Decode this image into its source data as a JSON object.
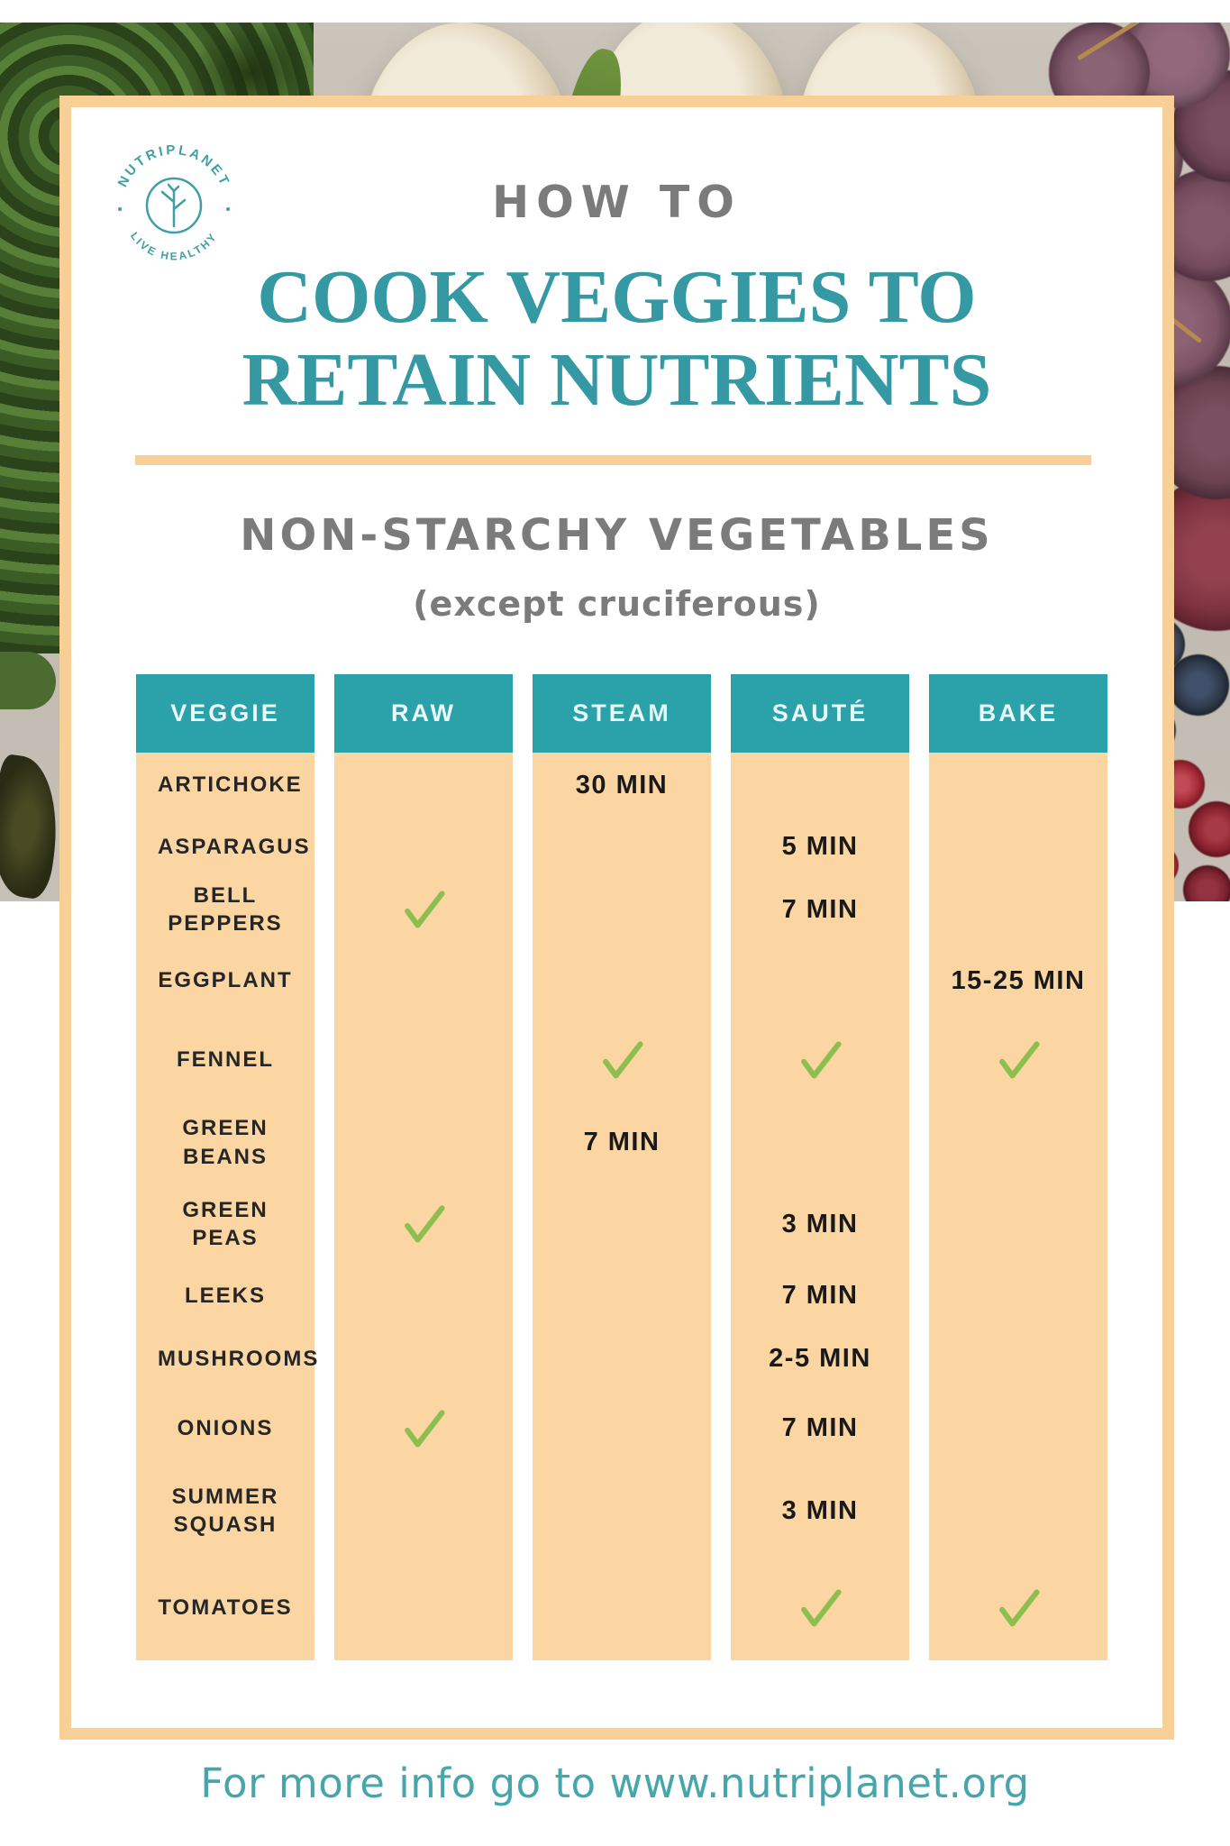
{
  "logo": {
    "brand": "NUTRIPLANET",
    "tagline": "LIVE HEALTHY"
  },
  "header": {
    "kicker": "HOW TO",
    "title_line1": "COOK VEGGIES TO",
    "title_line2": "RETAIN NUTRIENTS",
    "subtitle": "NON-STARCHY VEGETABLES",
    "subtitle_note": "(except cruciferous)"
  },
  "footer": {
    "text": "For more info go to www.nutriplanet.org"
  },
  "colors": {
    "teal_header": "#2ba2aa",
    "title_teal": "#3599a4",
    "peach_frame": "#f8cf97",
    "peach_column": "#fbd6a2",
    "check_green": "#8cbf4f",
    "gray_heading": "#7b7b7b",
    "footer_teal": "#47a6ac",
    "cell_text": "#191919"
  },
  "chart_data": {
    "type": "table",
    "title": "HOW TO COOK VEGGIES TO RETAIN NUTRIENTS",
    "subtitle": "NON-STARCHY VEGETABLES (except cruciferous)",
    "columns": [
      "VEGGIE",
      "RAW",
      "STEAM",
      "SAUTÉ",
      "BAKE"
    ],
    "check_symbol": "✓",
    "rows": [
      {
        "veggie": "ARTICHOKE",
        "raw": "",
        "steam": "30 MIN",
        "saute": "",
        "bake": ""
      },
      {
        "veggie": "ASPARAGUS",
        "raw": "",
        "steam": "",
        "saute": "5 MIN",
        "bake": ""
      },
      {
        "veggie": "BELL PEPPERS",
        "raw": "✓",
        "steam": "",
        "saute": "7 MIN",
        "bake": ""
      },
      {
        "veggie": "EGGPLANT",
        "raw": "",
        "steam": "",
        "saute": "",
        "bake": "15-25 MIN"
      },
      {
        "veggie": "FENNEL",
        "raw": "",
        "steam": "✓",
        "saute": "✓",
        "bake": "✓"
      },
      {
        "veggie": "GREEN BEANS",
        "raw": "",
        "steam": "7 MIN",
        "saute": "",
        "bake": ""
      },
      {
        "veggie": "GREEN PEAS",
        "raw": "✓",
        "steam": "",
        "saute": "3 MIN",
        "bake": ""
      },
      {
        "veggie": "LEEKS",
        "raw": "",
        "steam": "",
        "saute": "7 MIN",
        "bake": ""
      },
      {
        "veggie": "MUSHROOMS",
        "raw": "",
        "steam": "",
        "saute": "2-5 MIN",
        "bake": ""
      },
      {
        "veggie": "ONIONS",
        "raw": "✓",
        "steam": "",
        "saute": "7 MIN",
        "bake": ""
      },
      {
        "veggie": "SUMMER SQUASH",
        "raw": "",
        "steam": "",
        "saute": "3 MIN",
        "bake": ""
      },
      {
        "veggie": "TOMATOES",
        "raw": "",
        "steam": "",
        "saute": "✓",
        "bake": "✓"
      }
    ]
  }
}
